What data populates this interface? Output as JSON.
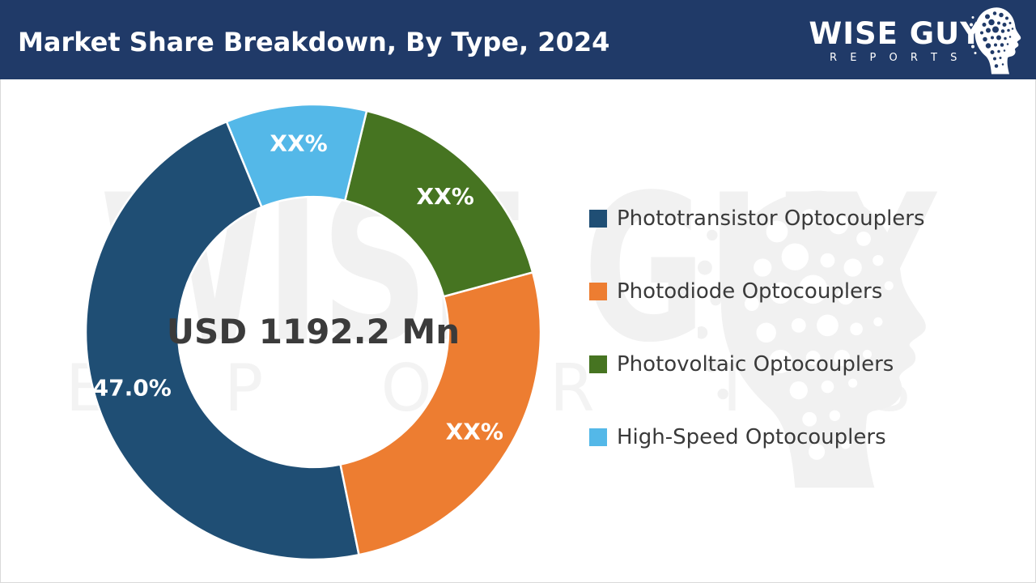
{
  "page": {
    "background": "#ffffff",
    "border_color": "#d9d9d9"
  },
  "header": {
    "title": "Market Share Breakdown, By Type, 2024",
    "background": "#203A68",
    "text_color": "#ffffff",
    "logo": {
      "line1": "WISE GUY",
      "line2": "R E P O R T S"
    }
  },
  "watermark": {
    "line1": "WISE GUY",
    "line2": "R E P O R T S"
  },
  "chart_data": {
    "type": "pie",
    "subtype": "donut",
    "title": "Market Share Breakdown, By Type, 2024",
    "center_label": "USD 1192.2 Mn",
    "center_label_color": "#3b3b3b",
    "slice_label_color": "#ffffff",
    "legend_position": "right",
    "direction": "counterclockwise",
    "start_angle_deg": 112.4,
    "inner_radius_ratio": 0.594,
    "hidden_percents_estimated_from_arc_angles": true,
    "segments": [
      {
        "name": "Phototransistor Optocouplers",
        "color": "#1F4E74",
        "display_label": "47.0%",
        "percent": 47.0,
        "percent_shown": true
      },
      {
        "name": "Photodiode Optocouplers",
        "color": "#ED7D31",
        "display_label": "XX%",
        "percent": 26.0,
        "percent_shown": false
      },
      {
        "name": "Photovoltaic Optocouplers",
        "color": "#467421",
        "display_label": "XX%",
        "percent": 17.0,
        "percent_shown": false
      },
      {
        "name": "High-Speed Optocouplers",
        "color": "#54B8E8",
        "display_label": "XX%",
        "percent": 10.0,
        "percent_shown": false
      }
    ]
  }
}
